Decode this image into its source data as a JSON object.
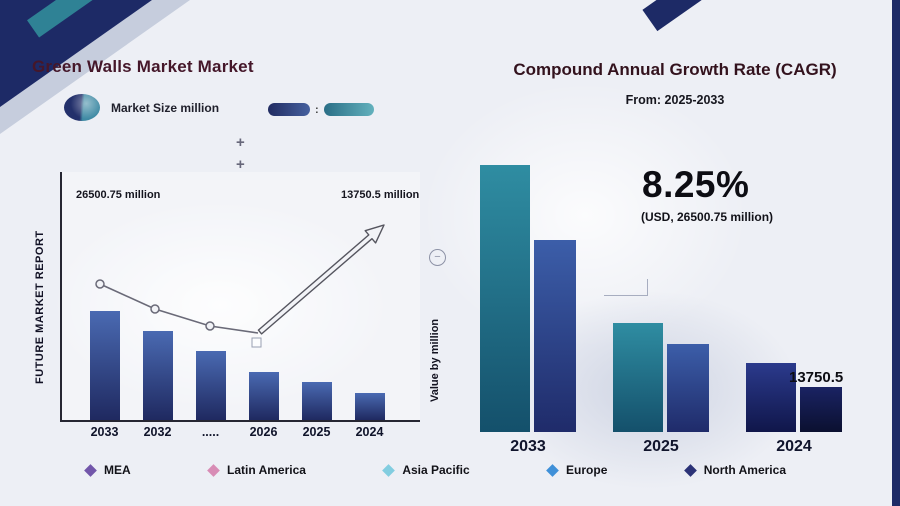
{
  "icons": {
    "plus": "+",
    "minus": "−",
    "pill_colon": ":"
  },
  "left_panel": {
    "side_label": "FUTURE MARKET REPORT"
  },
  "legend": {
    "position": "bottom",
    "items": [
      {
        "label": "MEA",
        "color": "#7256aa"
      },
      {
        "label": "Latin America",
        "color": "#d88cb5"
      },
      {
        "label": "Asia Pacific",
        "color": "#82cde0"
      },
      {
        "label": "Europe",
        "color": "#3f90d8"
      },
      {
        "label": "North America",
        "color": "#2b3277"
      }
    ]
  },
  "chart_data": [
    {
      "type": "bar",
      "title": "Green Walls Market Market",
      "legend_label": "Market Size million",
      "categories": [
        "2033",
        "2032",
        ".....",
        "2026",
        "2025",
        "2024"
      ],
      "relative_values": [
        100,
        82,
        63,
        44,
        35,
        25
      ],
      "anchor_values": {
        "2033": 26500.75,
        "2024": 13750.5,
        "unit": "USD million"
      },
      "start_label": "26500.75 million",
      "end_label": "13750.5 million",
      "bar_color_top": "#4a6ab2",
      "bar_color_bottom": "#1f2960",
      "overlay": "declining marker line with upward trend arrow",
      "grid": false
    },
    {
      "type": "bar",
      "grouped": true,
      "title": "Compound Annual Growth Rate (CAGR)",
      "subtitle": "From: 2025-2033",
      "big_value": "8.25%",
      "note": "(USD, 26500.75 million)",
      "ylabel": "Value by million",
      "categories": [
        "2033",
        "2025",
        "2024"
      ],
      "series": [
        {
          "name": "primary",
          "relative_values": [
            100,
            41,
            26
          ],
          "colors": [
            [
              "#2f8da2",
              "#14506b"
            ],
            [
              "#2f8da2",
              "#14506b"
            ],
            [
              "#2b3a8c",
              "#10164a"
            ]
          ]
        },
        {
          "name": "secondary",
          "relative_values": [
            72,
            33,
            17
          ],
          "colors": [
            [
              "#3c5ea9",
              "#1f2b6a"
            ],
            [
              "#3c5ea9",
              "#1f2b6a"
            ],
            [
              "#1a2363",
              "#0b1030"
            ]
          ]
        }
      ],
      "annotation": "13750.5",
      "annotation_category": "2024",
      "grid": false
    }
  ]
}
